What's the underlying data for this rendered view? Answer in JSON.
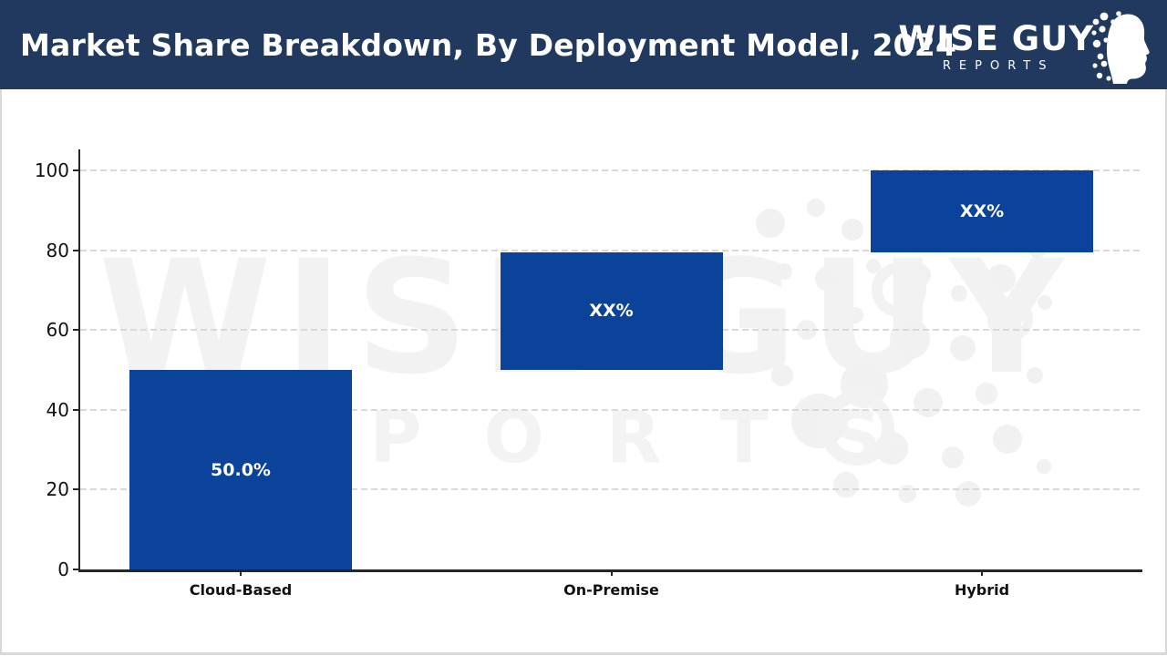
{
  "header": {
    "title": "Market Share Breakdown, By Deployment Model, 2024",
    "logo": {
      "brand": "WISE GUY",
      "sub": "REPORTS"
    }
  },
  "watermark": {
    "brand": "WISE GUY",
    "sub": "REPORTS"
  },
  "chart_data": {
    "type": "bar",
    "subtype": "waterfall",
    "title": "Market Share Breakdown, By Deployment Model, 2024",
    "categories": [
      "Cloud-Based",
      "On-Premise",
      "Hybrid"
    ],
    "segments": [
      {
        "category": "Cloud-Based",
        "start": 0,
        "end": 50,
        "label": "50.0%"
      },
      {
        "category": "On-Premise",
        "start": 50,
        "end": 79.5,
        "label": "XX%"
      },
      {
        "category": "Hybrid",
        "start": 79.5,
        "end": 100,
        "label": "XX%"
      }
    ],
    "ylim": [
      0,
      100
    ],
    "yticks": [
      0,
      20,
      40,
      60,
      80,
      100
    ],
    "xlabel": "",
    "ylabel": "",
    "legend": "none",
    "grid": "horizontal-dashed",
    "bar_color": "#0a4399",
    "bar_label_color": "#ffffff",
    "axis_color": "#262626",
    "grid_color": "#d9d9d9"
  },
  "colors": {
    "header_bg": "#21395e",
    "accent": "#0a4399",
    "watermark": "#f2f2f2",
    "frame_border": "#d9d9d9"
  }
}
